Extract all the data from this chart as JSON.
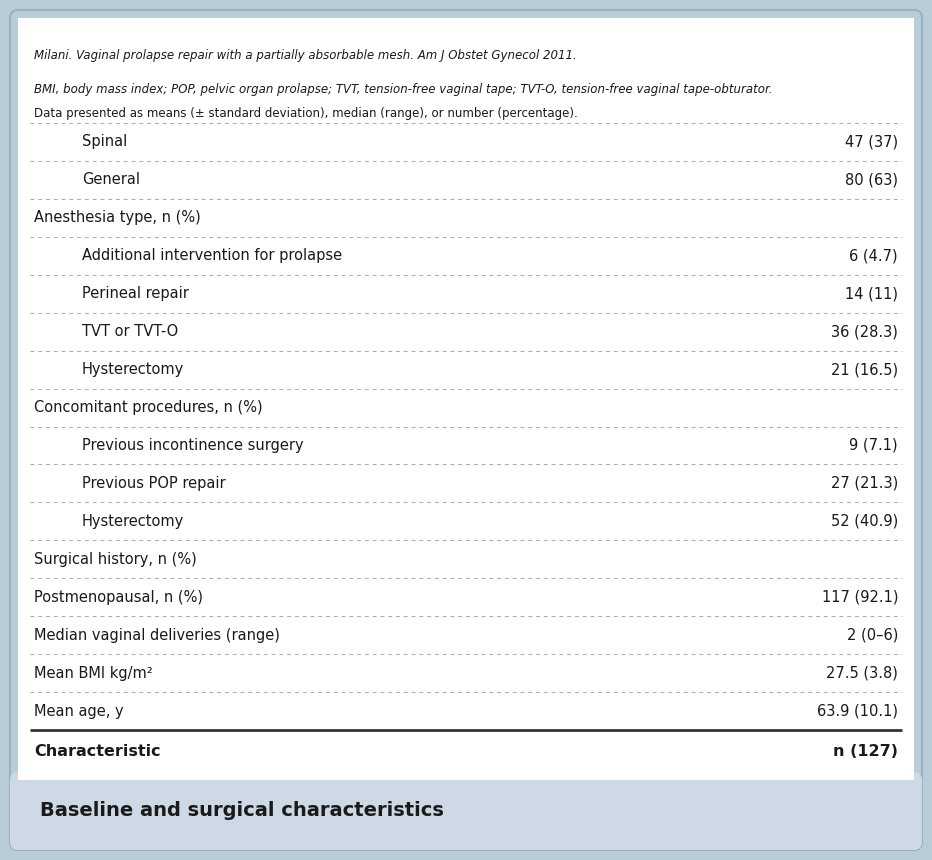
{
  "title": "Baseline and surgical characteristics",
  "title_bg": "#cdd9e5",
  "outer_bg": "#b8cdd8",
  "white_bg": "#ffffff",
  "header_col1": "Characteristic",
  "header_col2": "n (127)",
  "rows": [
    {
      "label": "Mean age, y",
      "value": "63.9 (10.1)",
      "indent": 0
    },
    {
      "label": "Mean BMI kg/m²",
      "value": "27.5 (3.8)",
      "indent": 0
    },
    {
      "label": "Median vaginal deliveries (range)",
      "value": "2 (0–6)",
      "indent": 0
    },
    {
      "label": "Postmenopausal, n (%)",
      "value": "117 (92.1)",
      "indent": 0
    },
    {
      "label": "Surgical history, n (%)",
      "value": "",
      "indent": 0
    },
    {
      "label": "Hysterectomy",
      "value": "52 (40.9)",
      "indent": 1
    },
    {
      "label": "Previous POP repair",
      "value": "27 (21.3)",
      "indent": 1
    },
    {
      "label": "Previous incontinence surgery",
      "value": "9 (7.1)",
      "indent": 1
    },
    {
      "label": "Concomitant procedures, n (%)",
      "value": "",
      "indent": 0
    },
    {
      "label": "Hysterectomy",
      "value": "21 (16.5)",
      "indent": 1
    },
    {
      "label": "TVT or TVT-O",
      "value": "36 (28.3)",
      "indent": 1
    },
    {
      "label": "Perineal repair",
      "value": "14 (11)",
      "indent": 1
    },
    {
      "label": "Additional intervention for prolapse",
      "value": "6 (4.7)",
      "indent": 1
    },
    {
      "label": "Anesthesia type, n (%)",
      "value": "",
      "indent": 0
    },
    {
      "label": "General",
      "value": "80 (63)",
      "indent": 1
    },
    {
      "label": "Spinal",
      "value": "47 (37)",
      "indent": 1
    }
  ],
  "footnote1": "Data presented as means (± standard deviation), median (range), or number (percentage).",
  "footnote2": "BMI, body mass index; POP, pelvic organ prolapse; TVT, tension-free vaginal tape; TVT-O, tension-free vaginal tape-obturator.",
  "footnote3": "Milani. Vaginal prolapse repair with a partially absorbable mesh. Am J Obstet Gynecol 2011.",
  "text_color": "#1a1a1a",
  "line_color_heavy": "#333333",
  "line_color_dotted": "#aaaaaa",
  "title_font_size": 14,
  "header_font_size": 11.5,
  "row_font_size": 10.5,
  "footnote_font_size": 8.5,
  "indent_amount": 0.055
}
